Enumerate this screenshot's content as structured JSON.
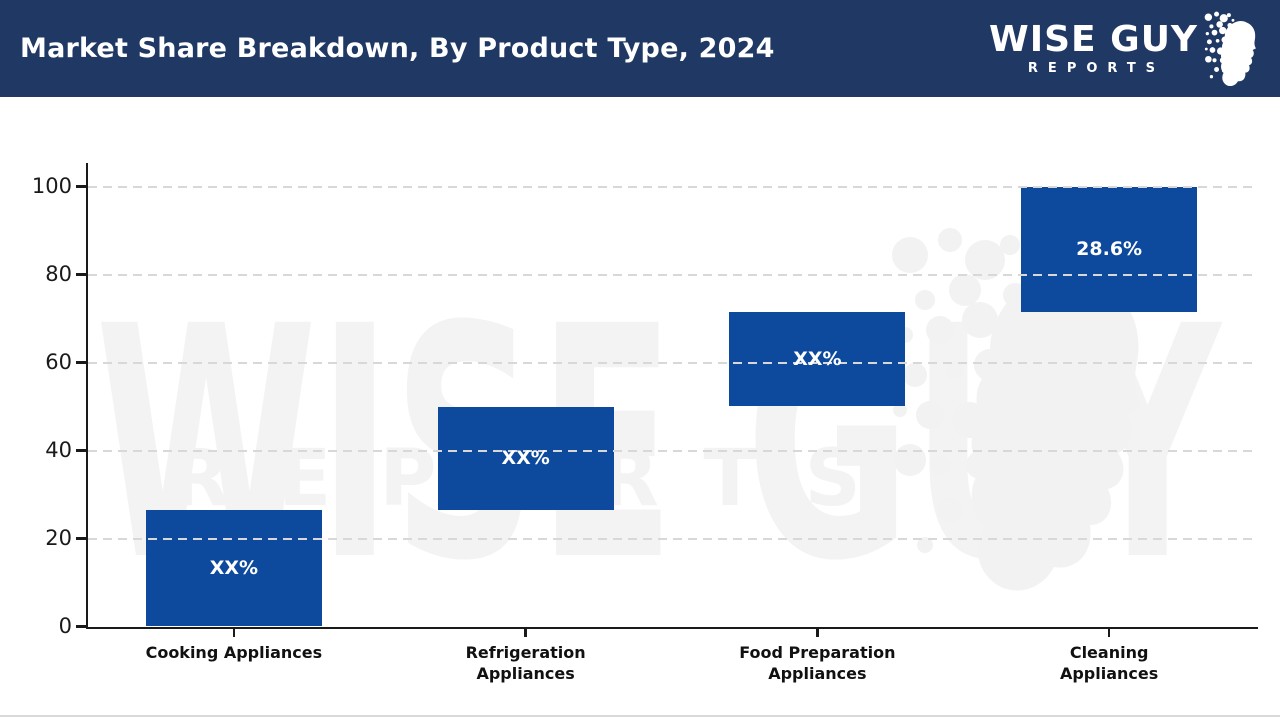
{
  "header": {
    "title": "Market Share Breakdown, By Product Type, 2024",
    "bg_color": "#203864",
    "logo": {
      "wordmark": "WISE GUY",
      "subtext": "REPORTS"
    }
  },
  "watermark": {
    "wordmark": "WISE GUY",
    "subtext": "REPORTS"
  },
  "chart_data": {
    "type": "bar",
    "variant": "waterfall",
    "title": "Market Share Breakdown, By Product Type, 2024",
    "categories": [
      "Cooking Appliances",
      "Refrigeration Appliances",
      "Food Preparation Appliances",
      "Cleaning Appliances"
    ],
    "category_label_lines": [
      [
        "Cooking Appliances"
      ],
      [
        "Refrigeration",
        "Appliances"
      ],
      [
        "Food Preparation",
        "Appliances"
      ],
      [
        "Cleaning",
        "Appliances"
      ]
    ],
    "segments": [
      {
        "category": "Cooking Appliances",
        "start": 0,
        "end": 26.4,
        "value": 26.4,
        "label": "XX%"
      },
      {
        "category": "Refrigeration Appliances",
        "start": 26.4,
        "end": 50,
        "value": 23.6,
        "label": "XX%"
      },
      {
        "category": "Food Preparation Appliances",
        "start": 50,
        "end": 71.4,
        "value": 21.4,
        "label": "XX%"
      },
      {
        "category": "Cleaning Appliances",
        "start": 71.4,
        "end": 100,
        "value": 28.6,
        "label": "28.6%"
      }
    ],
    "yticks": [
      0,
      20,
      40,
      60,
      80,
      100
    ],
    "ylim": [
      0,
      105
    ],
    "grid": "horizontal-dashed",
    "legend": "none",
    "xlabel": "",
    "ylabel": "",
    "bar_color": "#0d4a9e",
    "bar_label_color": "#ffffff",
    "axis_color": "#1a1a1a",
    "gridline_color": "#d8d8d8"
  }
}
